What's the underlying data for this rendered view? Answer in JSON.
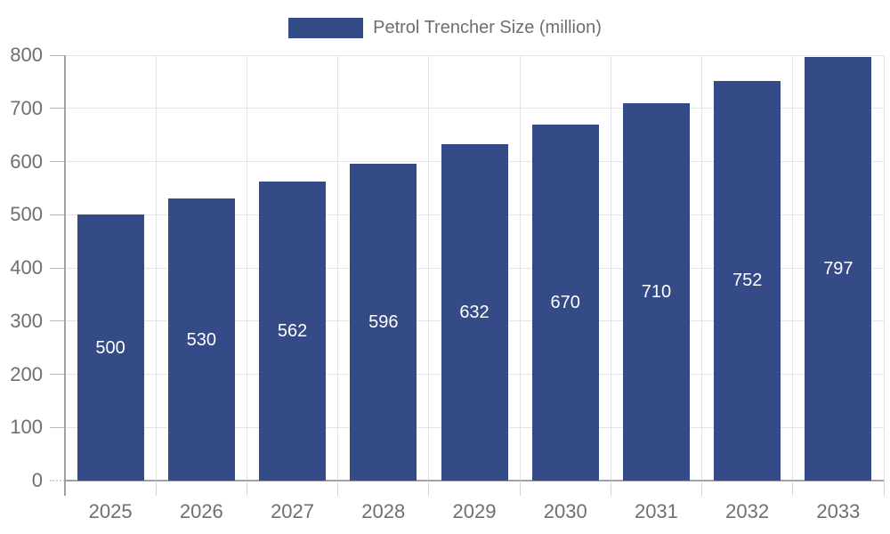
{
  "chart_data": {
    "type": "bar",
    "title": "",
    "legend": "Petrol Trencher Size (million)",
    "categories": [
      "2025",
      "2026",
      "2027",
      "2028",
      "2029",
      "2030",
      "2031",
      "2032",
      "2033"
    ],
    "values": [
      500,
      530,
      562,
      596,
      632,
      670,
      710,
      752,
      797
    ],
    "xlabel": "",
    "ylabel": "",
    "ylim": [
      0,
      800
    ],
    "yticks": [
      0,
      100,
      200,
      300,
      400,
      500,
      600,
      700,
      800
    ],
    "grid": true,
    "legend_position": "top",
    "colors": {
      "bar": "#354B87",
      "grid": "#e3e3ea",
      "axis_line": "#a0a0a6",
      "tick": "#b8b8bf",
      "boundary_tick": "#d2d2d9",
      "axis_text": "#6f6f6f",
      "value_text": "#ffffff",
      "background": "#ffffff"
    }
  }
}
